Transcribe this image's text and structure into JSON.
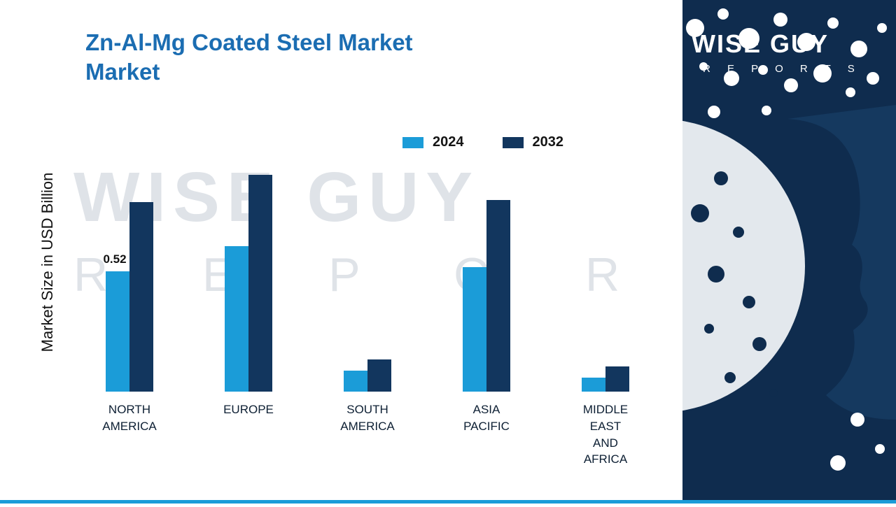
{
  "page": {
    "title_line1": "Zn-Al-Mg Coated Steel Market",
    "title_line2": "Market"
  },
  "logo": {
    "title": "WISE GUY",
    "subtitle": "R E P O R T S"
  },
  "watermark": {
    "line1": "WISE GUY",
    "line2": "R E P O R T"
  },
  "chart_data": {
    "type": "bar",
    "title": "Zn-Al-Mg Coated Steel Market Market",
    "ylabel": "Market Size in USD Billion",
    "categories": [
      "NORTH AMERICA",
      "EUROPE",
      "SOUTH AMERICA",
      "ASIA PACIFIC",
      "MIDDLE EAST AND AFRICA"
    ],
    "categories_display": [
      "NORTH\nAMERICA",
      "EUROPE",
      "SOUTH\nAMERICA",
      "ASIA\nPACIFIC",
      "MIDDLE\nEAST\nAND\nAFRICA"
    ],
    "series": [
      {
        "name": "2024",
        "color": "#1b9cd8",
        "values": [
          0.52,
          0.63,
          0.09,
          0.54,
          0.06
        ]
      },
      {
        "name": "2032",
        "color": "#12365e",
        "values": [
          0.82,
          0.94,
          0.14,
          0.83,
          0.11
        ]
      }
    ],
    "annotations": [
      {
        "series_index": 0,
        "category_index": 0,
        "text": "0.52"
      }
    ],
    "ylim": [
      0,
      1.0
    ],
    "legend_position": "top-center",
    "grid": false
  },
  "colors": {
    "title": "#1b6db2",
    "panel": "#0f2c4e",
    "panel_circle": "#e3e8ed",
    "bottom_strip": "#1b9cd8",
    "watermark": "#dfe3e8"
  }
}
